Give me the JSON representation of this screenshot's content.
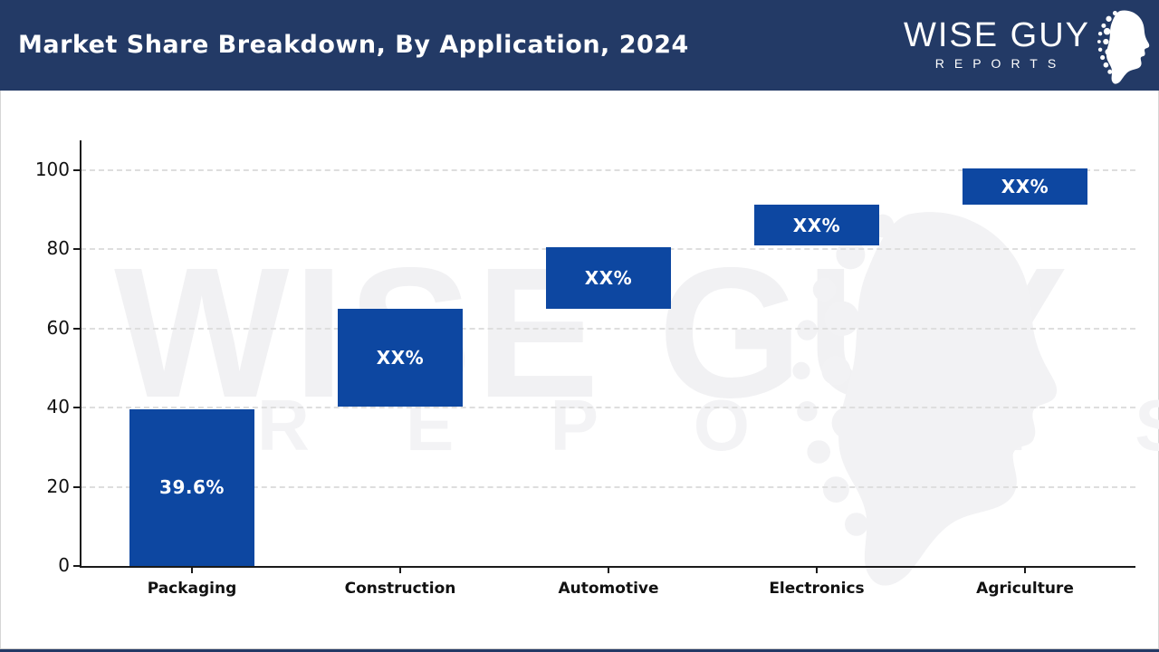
{
  "header": {
    "title": "Market Share Breakdown, By Application, 2024",
    "logo": {
      "line1": "WISE GUY",
      "line2": "REPORTS"
    }
  },
  "watermark": {
    "line1": "WISE GUY",
    "line2": "R E P O R T S"
  },
  "chart_data": {
    "type": "bar",
    "subtype": "waterfall",
    "title": "Market Share Breakdown, By Application, 2024",
    "categories": [
      "Packaging",
      "Construction",
      "Automotive",
      "Electronics",
      "Agriculture"
    ],
    "segments": [
      {
        "category": "Packaging",
        "start": 0,
        "end": 39.6,
        "label": "39.6%"
      },
      {
        "category": "Construction",
        "start": 40.2,
        "end": 64.9,
        "label": "XX%"
      },
      {
        "category": "Automotive",
        "start": 64.9,
        "end": 80.4,
        "label": "XX%"
      },
      {
        "category": "Electronics",
        "start": 80.9,
        "end": 91.2,
        "label": "XX%"
      },
      {
        "category": "Agriculture",
        "start": 91.3,
        "end": 100.4,
        "label": "XX%"
      }
    ],
    "yticks": [
      0,
      20,
      40,
      60,
      80,
      100
    ],
    "ylim": [
      0,
      107
    ],
    "xlabel": "",
    "ylabel": "",
    "grid": "horizontal-dashed",
    "legend": "none",
    "bar_color": "#0d47a1",
    "bar_label_color": "#ffffff"
  },
  "colors": {
    "header_bg": "#233a66",
    "bar": "#0d47a1",
    "grid": "#dedede",
    "axis": "#1a1a1a",
    "watermark": "#f1f1f3"
  }
}
